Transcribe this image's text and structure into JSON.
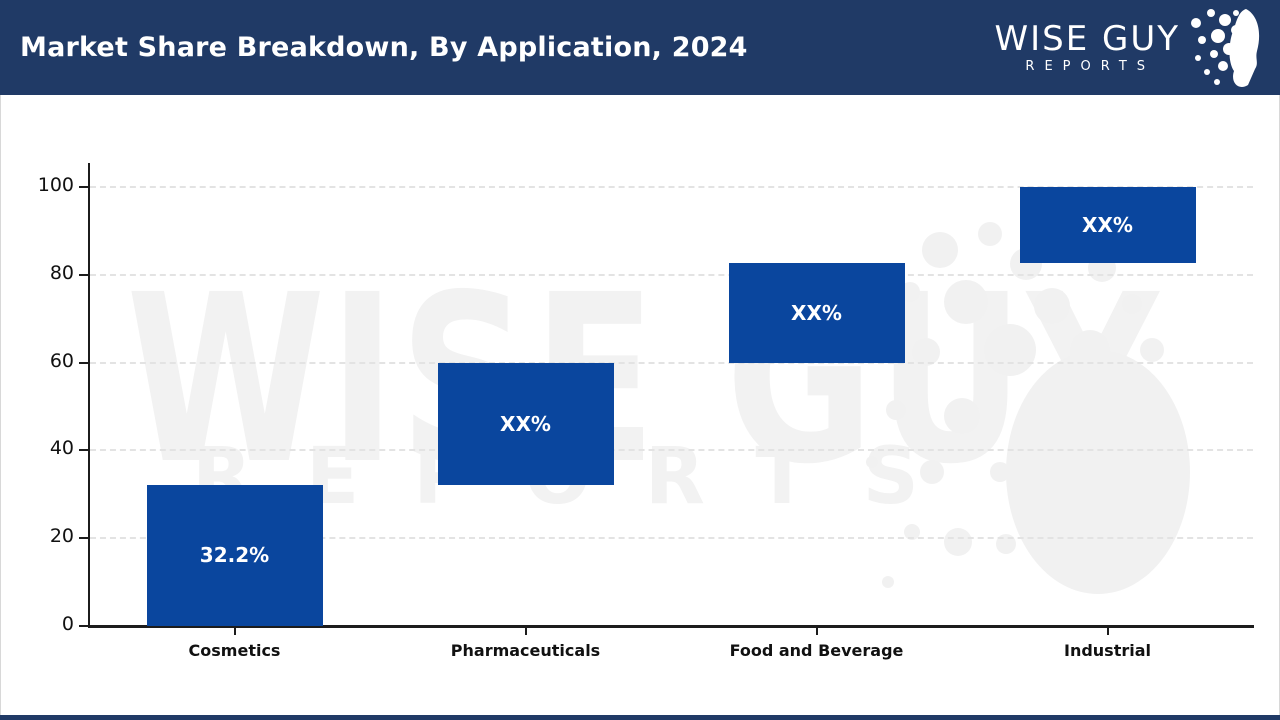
{
  "header": {
    "title": "Market Share Breakdown, By Application, 2024"
  },
  "logo": {
    "line1": "WISE GUY",
    "line2": "REPORTS"
  },
  "watermark": {
    "line1": "WISE GUY",
    "line2": "REPORTS"
  },
  "colors": {
    "header_bg": "#203A66",
    "bar": "#0A469E",
    "grid": "#E3E3E3",
    "axis": "#1C1C1C",
    "bar_label": "#FFFFFF",
    "watermark": "#F2F2F2",
    "frame_border": "#D8D8D8"
  },
  "chart_data": {
    "type": "bar",
    "subtype": "waterfall",
    "title": "Market Share Breakdown, By Application, 2024",
    "categories": [
      "Cosmetics",
      "Pharmaceuticals",
      "Food and Beverage",
      "Industrial"
    ],
    "segments": [
      {
        "category": "Cosmetics",
        "start": 0,
        "end": 32.2,
        "label": "32.2%"
      },
      {
        "category": "Pharmaceuticals",
        "start": 32.2,
        "end": 60.0,
        "label": "XX%"
      },
      {
        "category": "Food and Beverage",
        "start": 60.0,
        "end": 82.8,
        "label": "XX%"
      },
      {
        "category": "Industrial",
        "start": 82.8,
        "end": 100.0,
        "label": "XX%"
      }
    ],
    "ylim": [
      0,
      100
    ],
    "yticks": [
      0,
      20,
      40,
      60,
      80,
      100
    ],
    "xlabel": "",
    "ylabel": "",
    "grid": "dashed-horizontal",
    "legend": "none"
  }
}
